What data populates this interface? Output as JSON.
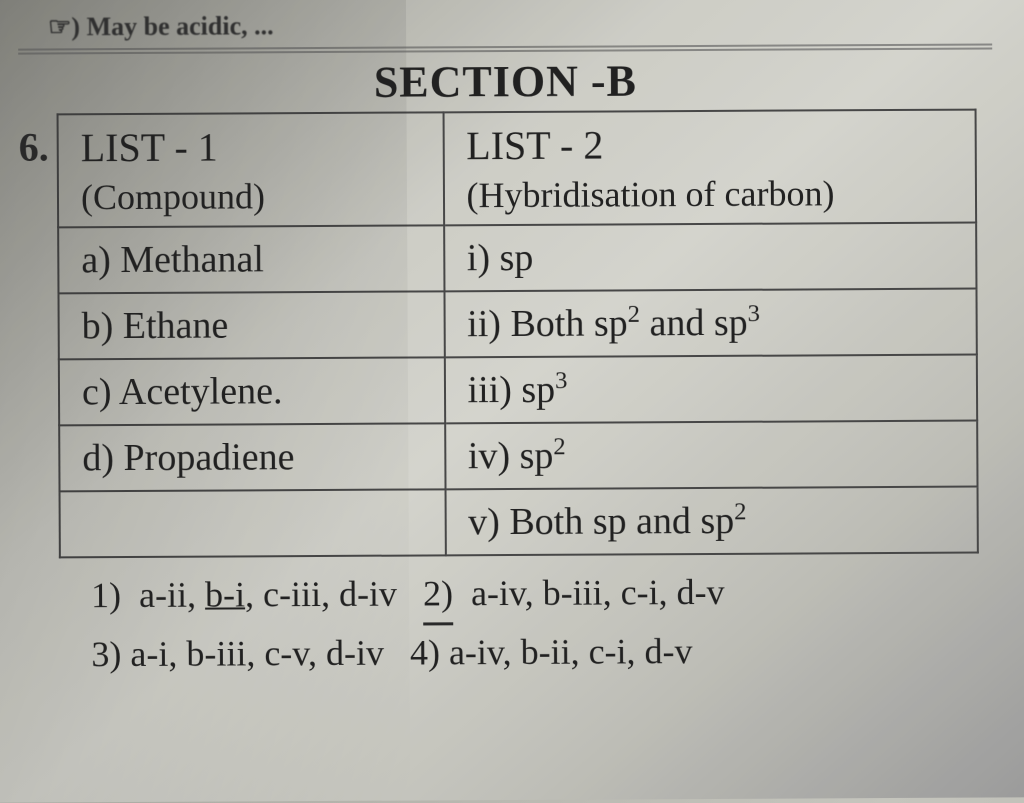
{
  "top_fragment": "☞) May be acidic, ...",
  "section_title": "SECTION -B",
  "question_number": "6.",
  "table": {
    "header": {
      "list1_title": "LIST - 1",
      "list1_sub": "(Compound)",
      "list2_title": "LIST - 2",
      "list2_sub": "(Hybridisation of carbon)"
    },
    "rows": [
      {
        "left": "a) Methanal",
        "right": "i) sp"
      },
      {
        "left": "b) Ethane",
        "right": "ii) Both sp² and sp³"
      },
      {
        "left": "c) Acetylene.",
        "right": "iii) sp³"
      },
      {
        "left": "d) Propadiene",
        "right": "iv) sp²"
      },
      {
        "left": "",
        "right": "v) Both sp and sp²"
      }
    ],
    "border_color": "#444444",
    "cell_fontsize": 38
  },
  "options": {
    "opt1": "1)  a-ii, b-i, c-iii, d-iv",
    "opt2": "2)  a-iv, b-iii, c-i, d-v",
    "opt3": "3)  a-i, b-iii, c-v, d-iv",
    "opt4": "4)  a-iv, b-ii, c-i, d-v"
  },
  "styling": {
    "page_bg_gradient": [
      "#9a9a92",
      "#d8d8d0",
      "#e0e0d8",
      "#c8c8c0",
      "#a0a0a0"
    ],
    "text_color": "#1a1a1a",
    "font_family": "Times New Roman",
    "section_title_fontsize": 44,
    "qnum_fontsize": 40,
    "options_fontsize": 36,
    "rotation_deg": -0.3,
    "marked_option": 2,
    "underlined_fragment_in_opt1": "b-i"
  }
}
